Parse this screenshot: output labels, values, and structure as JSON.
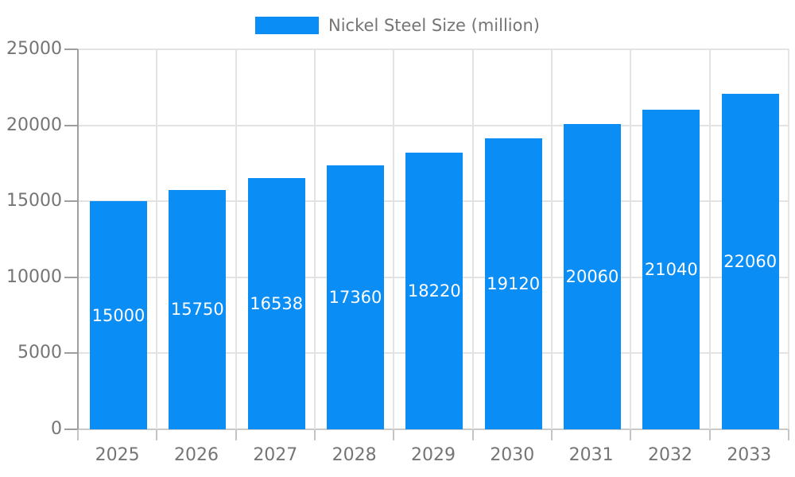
{
  "chart_data": {
    "type": "bar",
    "title": "",
    "legend": [
      "Nickel Steel Size (million)"
    ],
    "legend_position": "top-center",
    "categories": [
      "2025",
      "2026",
      "2027",
      "2028",
      "2029",
      "2030",
      "2031",
      "2032",
      "2033"
    ],
    "series": [
      {
        "name": "Nickel Steel Size (million)",
        "values": [
          15000,
          15750,
          16538,
          17360,
          18220,
          19120,
          20060,
          21040,
          22060
        ]
      }
    ],
    "xlabel": "",
    "ylabel": "",
    "ylim": [
      0,
      25000
    ],
    "yticks": [
      0,
      5000,
      10000,
      15000,
      20000,
      25000
    ],
    "grid": true,
    "bar_value_labels": "inside-middle",
    "colors": {
      "bar": "#0a8df5",
      "grid": "#e3e3e3",
      "baseline": "#c9c9c9",
      "axis": "#9e9e9e",
      "x_tick": "#c4c4c4",
      "label_text": "#757575",
      "bar_label_text": "#ffffff",
      "background": "#ffffff"
    }
  }
}
